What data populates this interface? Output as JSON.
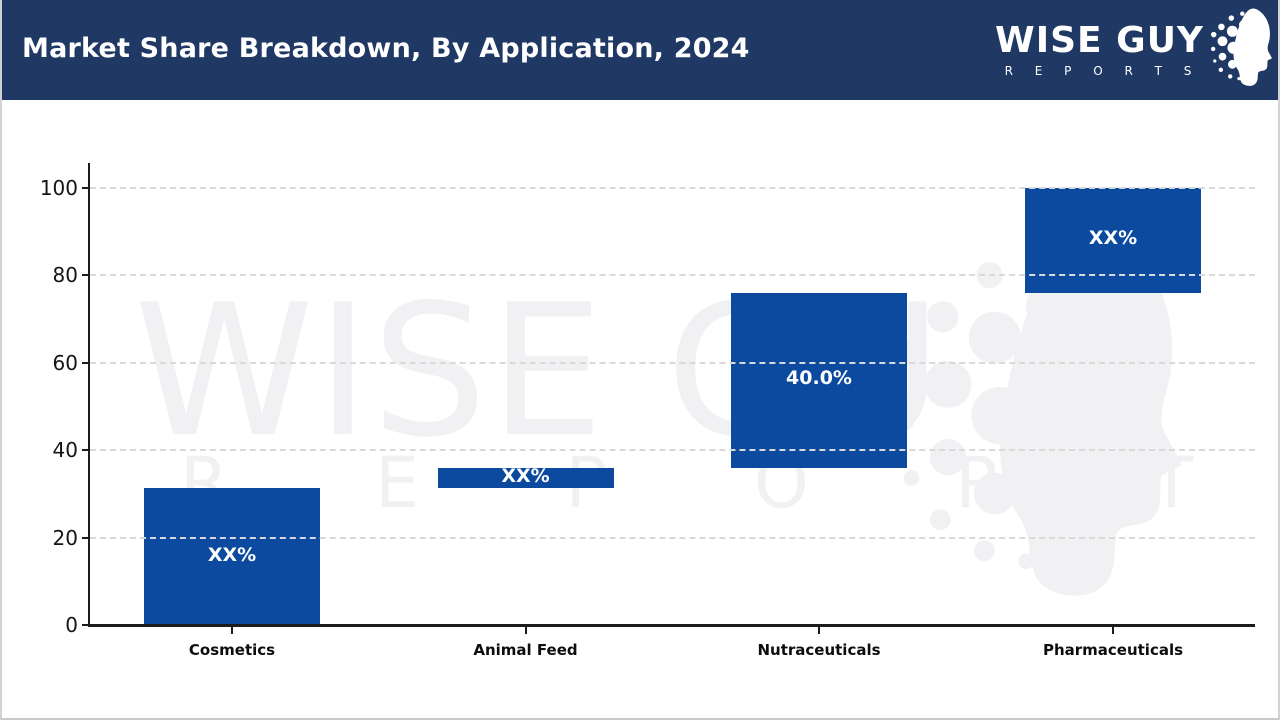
{
  "header": {
    "title": "Market Share Breakdown, By Application, 2024",
    "logo": {
      "brand_top": "WISE GUY",
      "brand_bottom": "R E P O R T S"
    }
  },
  "watermark": {
    "line1": "WISE GU",
    "line2": "R E P O R T S"
  },
  "colors": {
    "header_bg": "#1f3864",
    "bar": "#0b4a9e",
    "grid": "#d9d9d9",
    "axis": "#1c1c1c",
    "bar_label_text": "#ffffff",
    "watermark": "#f1f1f4"
  },
  "chart_data": {
    "type": "bar",
    "subtype": "floating-segment-column",
    "title": "Market Share Breakdown, By Application, 2024",
    "categories": [
      "Cosmetics",
      "Animal Feed",
      "Nutraceuticals",
      "Pharmaceuticals"
    ],
    "segments": [
      {
        "category": "Cosmetics",
        "start": 0,
        "end": 31.3,
        "label": "XX%"
      },
      {
        "category": "Animal Feed",
        "start": 31.4,
        "end": 36.0,
        "label": "XX%"
      },
      {
        "category": "Nutraceuticals",
        "start": 36.0,
        "end": 76.0,
        "label": "40.0%"
      },
      {
        "category": "Pharmaceuticals",
        "start": 76.0,
        "end": 100.0,
        "label": "XX%"
      }
    ],
    "yticks": [
      0,
      20,
      40,
      60,
      80,
      100
    ],
    "ylim": [
      0,
      105
    ],
    "xlabel": "",
    "ylabel": "",
    "grid": "dashed-horizontal-over-bars",
    "legend": "none"
  }
}
